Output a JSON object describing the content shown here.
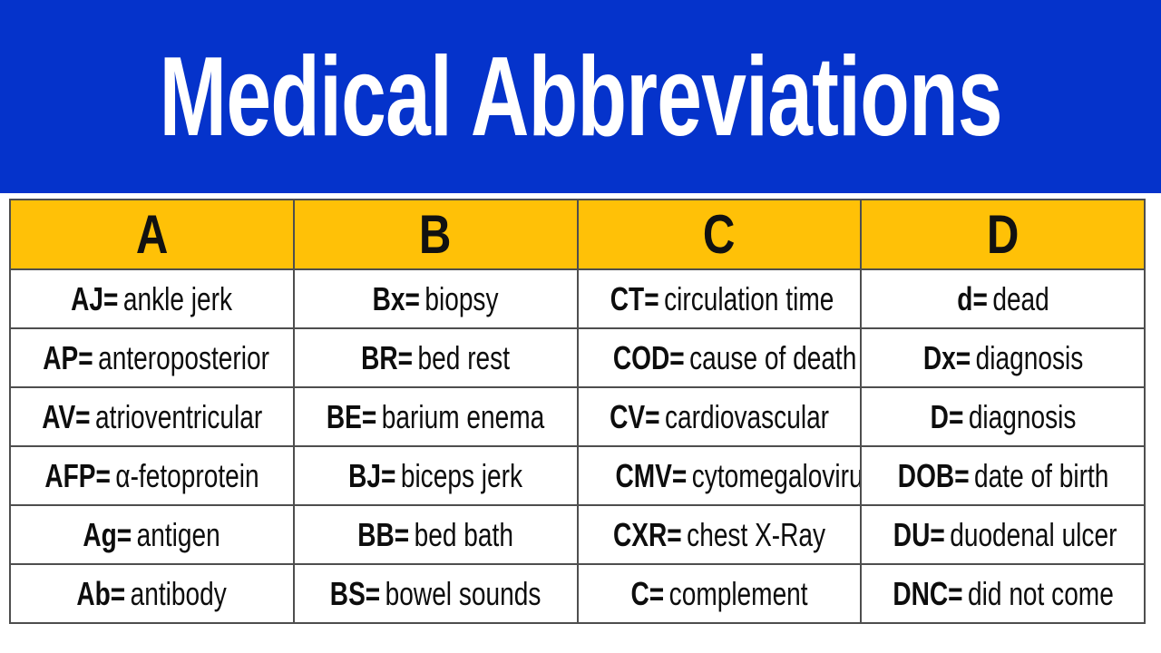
{
  "banner": {
    "title": "Medical Abbreviations"
  },
  "colors": {
    "banner_bg": "#0533cb",
    "title_color": "#ffffff",
    "header_bg": "#ffc107",
    "border_color": "#4e4e4e"
  },
  "table": {
    "columns": [
      "A",
      "B",
      "C",
      "D"
    ],
    "rows": [
      [
        {
          "abbr": "AJ=",
          "definition": "ankle jerk"
        },
        {
          "abbr": "Bx=",
          "definition": "biopsy"
        },
        {
          "abbr": "CT=",
          "definition": "circulation time"
        },
        {
          "abbr": "d=",
          "definition": "dead"
        }
      ],
      [
        {
          "abbr": "AP=",
          "definition": "anteroposterior"
        },
        {
          "abbr": "BR=",
          "definition": "bed rest"
        },
        {
          "abbr": "COD=",
          "definition": "cause of death"
        },
        {
          "abbr": "Dx=",
          "definition": "diagnosis"
        }
      ],
      [
        {
          "abbr": "AV=",
          "definition": "atrioventricular"
        },
        {
          "abbr": "BE=",
          "definition": "barium enema"
        },
        {
          "abbr": "CV=",
          "definition": "cardiovascular"
        },
        {
          "abbr": "D=",
          "definition": "diagnosis"
        }
      ],
      [
        {
          "abbr": "AFP=",
          "definition": "α-fetoprotein"
        },
        {
          "abbr": "BJ=",
          "definition": "biceps jerk"
        },
        {
          "abbr": "CMV=",
          "definition": "cytomegalovirus"
        },
        {
          "abbr": "DOB=",
          "definition": "date of birth"
        }
      ],
      [
        {
          "abbr": "Ag=",
          "definition": "antigen"
        },
        {
          "abbr": "BB=",
          "definition": "bed bath"
        },
        {
          "abbr": "CXR=",
          "definition": "chest X-Ray"
        },
        {
          "abbr": "DU=",
          "definition": "duodenal ulcer"
        }
      ],
      [
        {
          "abbr": "Ab=",
          "definition": "antibody"
        },
        {
          "abbr": "BS=",
          "definition": "bowel sounds"
        },
        {
          "abbr": "C=",
          "definition": "complement"
        },
        {
          "abbr": "DNC=",
          "definition": "did not come"
        }
      ]
    ]
  }
}
